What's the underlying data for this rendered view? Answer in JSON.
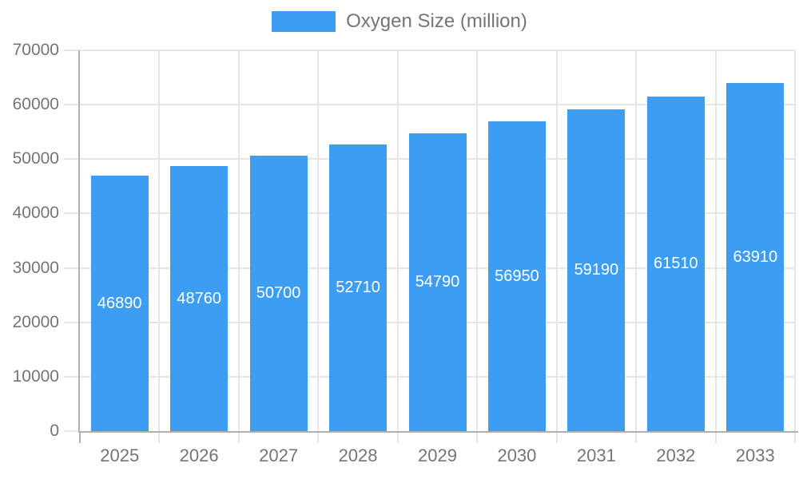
{
  "chart_data": {
    "type": "bar",
    "title": "",
    "legend": [
      "Oxygen Size (million)"
    ],
    "legend_position": "top-center",
    "categories": [
      "2025",
      "2026",
      "2027",
      "2028",
      "2029",
      "2030",
      "2031",
      "2032",
      "2033"
    ],
    "series": [
      {
        "name": "Oxygen Size (million)",
        "values": [
          46890,
          48760,
          50700,
          52710,
          54790,
          56950,
          59190,
          61510,
          63910
        ]
      }
    ],
    "xlabel": "",
    "ylabel": "",
    "ylim": [
      0,
      70000
    ],
    "y_tick_interval": 10000,
    "y_tick_labels": [
      "0",
      "10000",
      "20000",
      "30000",
      "40000",
      "50000",
      "60000",
      "70000"
    ],
    "bar_value_labels_visible": true,
    "grid": true,
    "colors": {
      "bar": "#3D9DF3",
      "bar_label_text": "#FFFFFF",
      "grid_line": "#E6E6E6",
      "axis_line": "#B0B0B0",
      "axis_text": "#757575",
      "background": "#FFFFFF"
    }
  }
}
